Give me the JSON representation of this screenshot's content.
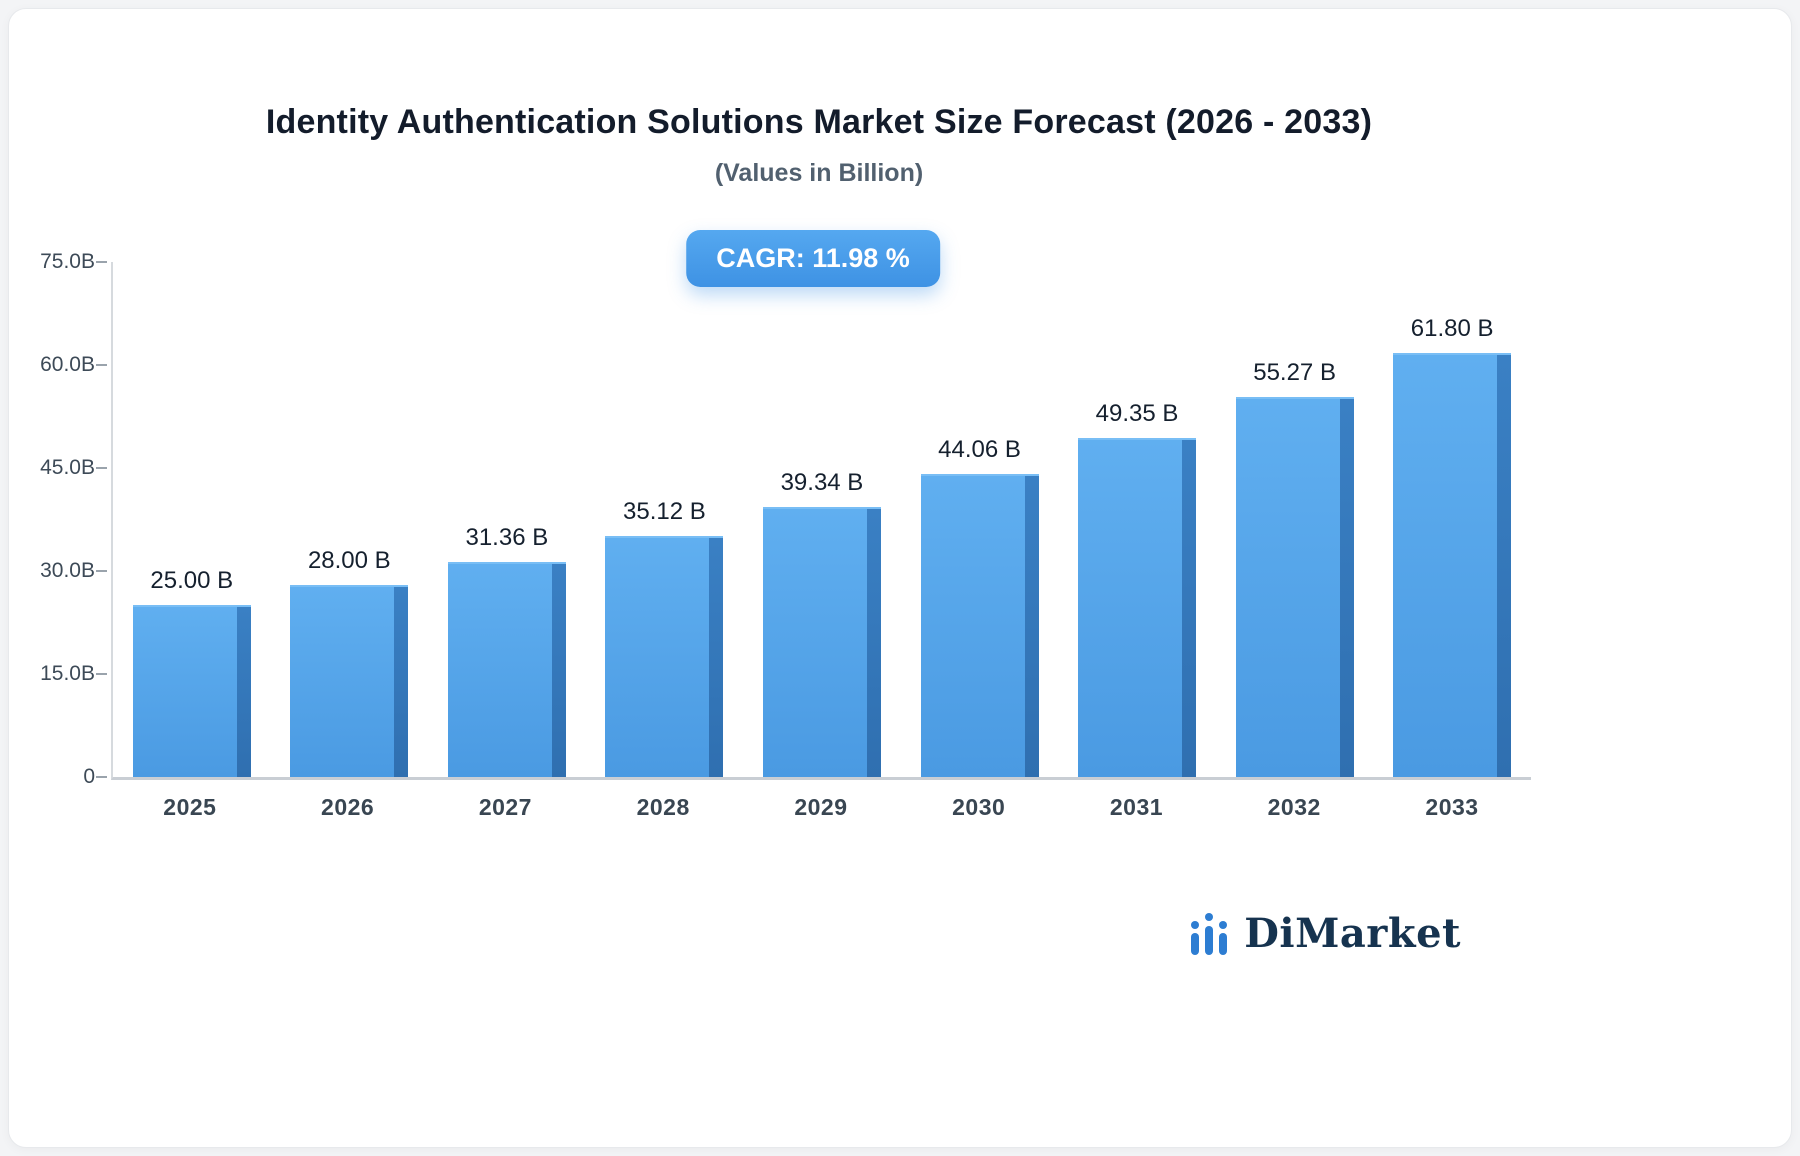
{
  "title": "Identity Authentication Solutions Market Size Forecast (2026 - 2033)",
  "subtitle": "(Values in Billion)",
  "cagr_badge": "CAGR: 11.98 %",
  "logo": {
    "text": "DiMarket",
    "icon": "bar-chart-icon",
    "icon_color": "#2d7dd2",
    "text_color": "#16334f"
  },
  "colors": {
    "bar_top": "#60aff0",
    "bar_bottom": "#4a9ae2",
    "bar_side_top": "#3a80c4",
    "bar_side_bottom": "#2f6fb0",
    "badge_bg": "#459be8",
    "axis_line": "#c9ced4"
  },
  "chart_data": {
    "type": "bar",
    "title": "Identity Authentication Solutions Market Size Forecast (2026 - 2033)",
    "subtitle": "(Values in Billion)",
    "categories": [
      "2025",
      "2026",
      "2027",
      "2028",
      "2029",
      "2030",
      "2031",
      "2032",
      "2033"
    ],
    "values": [
      25.0,
      28.0,
      31.36,
      35.12,
      39.34,
      44.06,
      49.35,
      55.27,
      61.8
    ],
    "value_labels": [
      "25.00 B",
      "28.00 B",
      "31.36 B",
      "35.12 B",
      "39.34 B",
      "44.06 B",
      "49.35 B",
      "55.27 B",
      "61.80 B"
    ],
    "xlabel": "",
    "ylabel": "",
    "ylim": [
      0,
      75
    ],
    "yticks": [
      0,
      15,
      30,
      45,
      60,
      75
    ],
    "ytick_labels": [
      "0",
      "15.0B",
      "30.0B",
      "45.0B",
      "60.0B",
      "75.0B"
    ],
    "grid": false,
    "legend": false,
    "annotation": "CAGR: 11.98 %"
  }
}
